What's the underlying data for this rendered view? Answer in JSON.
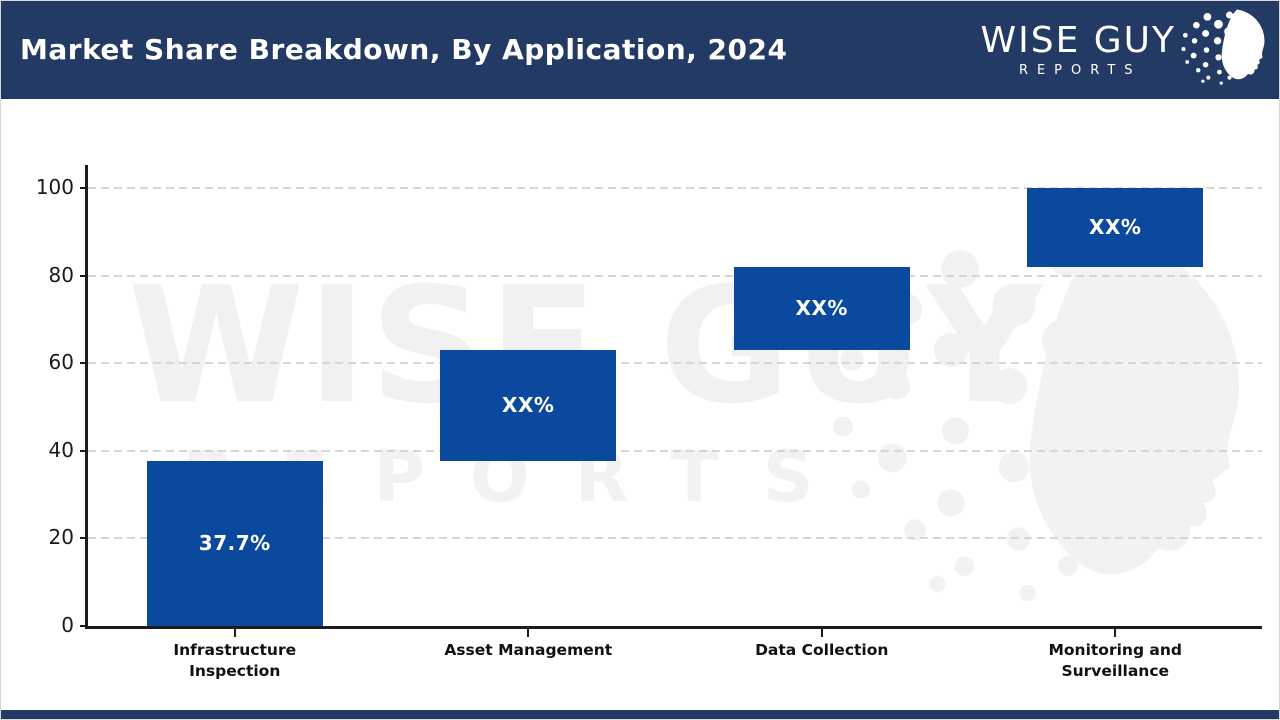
{
  "header": {
    "title": "Market Share Breakdown, By Application, 2024",
    "logo": {
      "line1": "WISE GUY",
      "line2": "REPORTS"
    }
  },
  "watermark": {
    "line1": "WISE GUY",
    "line2": "REPORTS"
  },
  "footer": {},
  "colors": {
    "header_bg": "#233A64",
    "footer_bg": "#233A64",
    "bar": "#0A499E",
    "grid": "#d6d6d6",
    "axis": "#1c1c1c",
    "watermark": "#f1f1f4",
    "bar_label": "#ffffff"
  },
  "chart_data": {
    "type": "bar",
    "subtype": "waterfall",
    "title": "Market Share Breakdown, By Application, 2024",
    "categories": [
      "Infrastructure\nInspection",
      "Asset Management",
      "Data Collection",
      "Monitoring and\nSurveillance"
    ],
    "segments": [
      {
        "label": "37.7%",
        "start": 0,
        "end": 37.7
      },
      {
        "label": "XX%",
        "start": 37.7,
        "end": 63
      },
      {
        "label": "XX%",
        "start": 63,
        "end": 82
      },
      {
        "label": "XX%",
        "start": 82,
        "end": 100
      }
    ],
    "yticks": [
      0,
      20,
      40,
      60,
      80,
      100
    ],
    "ylim": [
      0,
      100
    ],
    "xlabel": "",
    "ylabel": "",
    "grid": "horizontal-dashed",
    "legend": "none"
  }
}
